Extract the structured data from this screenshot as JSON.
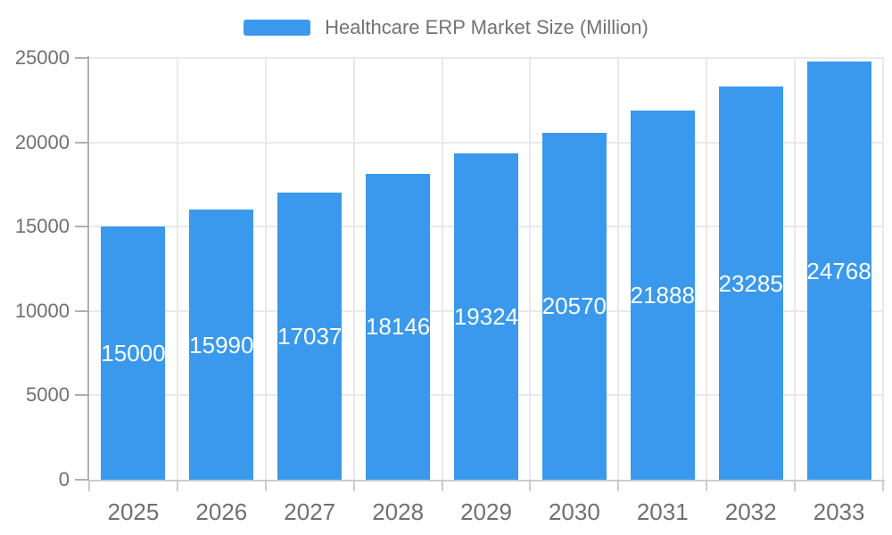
{
  "chart_data": {
    "type": "bar",
    "title": "Healthcare ERP Market Size (Million)",
    "legend": {
      "position": "top",
      "entries": [
        "Healthcare ERP Market Size (Million)"
      ]
    },
    "categories": [
      "2025",
      "2026",
      "2027",
      "2028",
      "2029",
      "2030",
      "2031",
      "2032",
      "2033"
    ],
    "series": [
      {
        "name": "Healthcare ERP Market Size (Million)",
        "values": [
          15000,
          15990,
          17037,
          18146,
          19324,
          20570,
          21888,
          23285,
          24768
        ]
      }
    ],
    "bar_value_labels": [
      "15000",
      "15990",
      "17037",
      "18146",
      "19324",
      "20570",
      "21888",
      "23285",
      "24768"
    ],
    "xlabel": "",
    "ylabel": "",
    "ylim": [
      0,
      25000
    ],
    "y_ticks": [
      0,
      5000,
      10000,
      15000,
      20000,
      25000
    ],
    "grid": true,
    "colors": {
      "bar": "#3A99EC",
      "bar_label_text": "#FFFFFF",
      "axis_text": "#707070",
      "legend_text": "#737373",
      "grid_line": "#E9E9E9",
      "y_axis_line": "#B0B0B0",
      "x_axis_line": "#CCCCCC",
      "background": "#FFFFFF"
    }
  }
}
